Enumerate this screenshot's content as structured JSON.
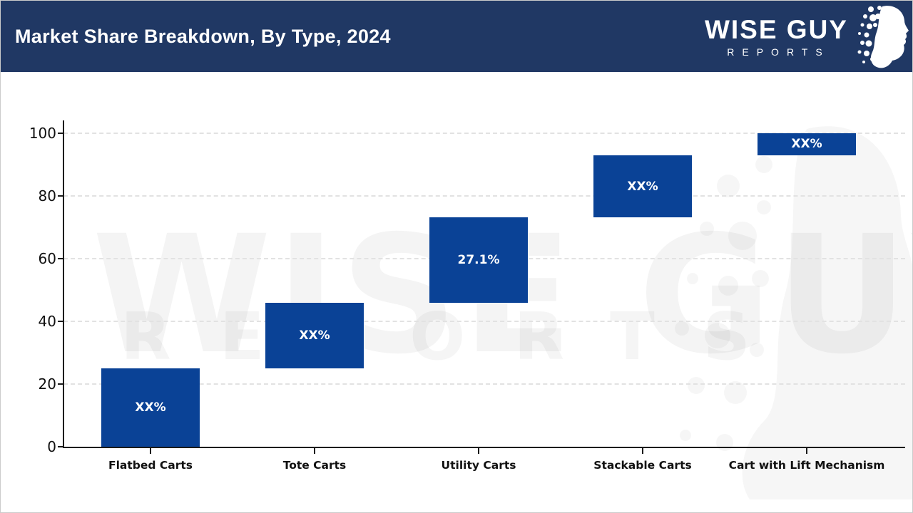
{
  "header": {
    "title": "Market Share Breakdown, By Type, 2024",
    "bg_color": "#203864",
    "logo": {
      "line1": "WISE GUY",
      "line2": "REPORTS"
    }
  },
  "watermark": {
    "line1": "WISE GUY",
    "line2": "REPORTS"
  },
  "chart_data": {
    "type": "bar",
    "subtype": "waterfall",
    "title": "Market Share Breakdown, By Type, 2024",
    "categories": [
      "Flatbed Carts",
      "Tote Carts",
      "Utility Carts",
      "Stackable Carts",
      "Cart with Lift Mechanism"
    ],
    "segments": [
      {
        "category": "Flatbed Carts",
        "start": 0,
        "end": 25,
        "label": "XX%"
      },
      {
        "category": "Tote Carts",
        "start": 25,
        "end": 46,
        "label": "XX%"
      },
      {
        "category": "Utility Carts",
        "start": 46,
        "end": 73.1,
        "label": "27.1%"
      },
      {
        "category": "Stackable Carts",
        "start": 73.1,
        "end": 93,
        "label": "XX%"
      },
      {
        "category": "Cart with Lift Mechanism",
        "start": 93,
        "end": 100,
        "label": "XX%"
      }
    ],
    "xlabel": "",
    "ylabel": "",
    "ylim": [
      0,
      100
    ],
    "yticks": [
      0,
      20,
      40,
      60,
      80,
      100
    ],
    "grid": "horizontal-dashed",
    "legend": "none",
    "bar_color": "#0a4296",
    "bar_label_color": "#ffffff"
  }
}
